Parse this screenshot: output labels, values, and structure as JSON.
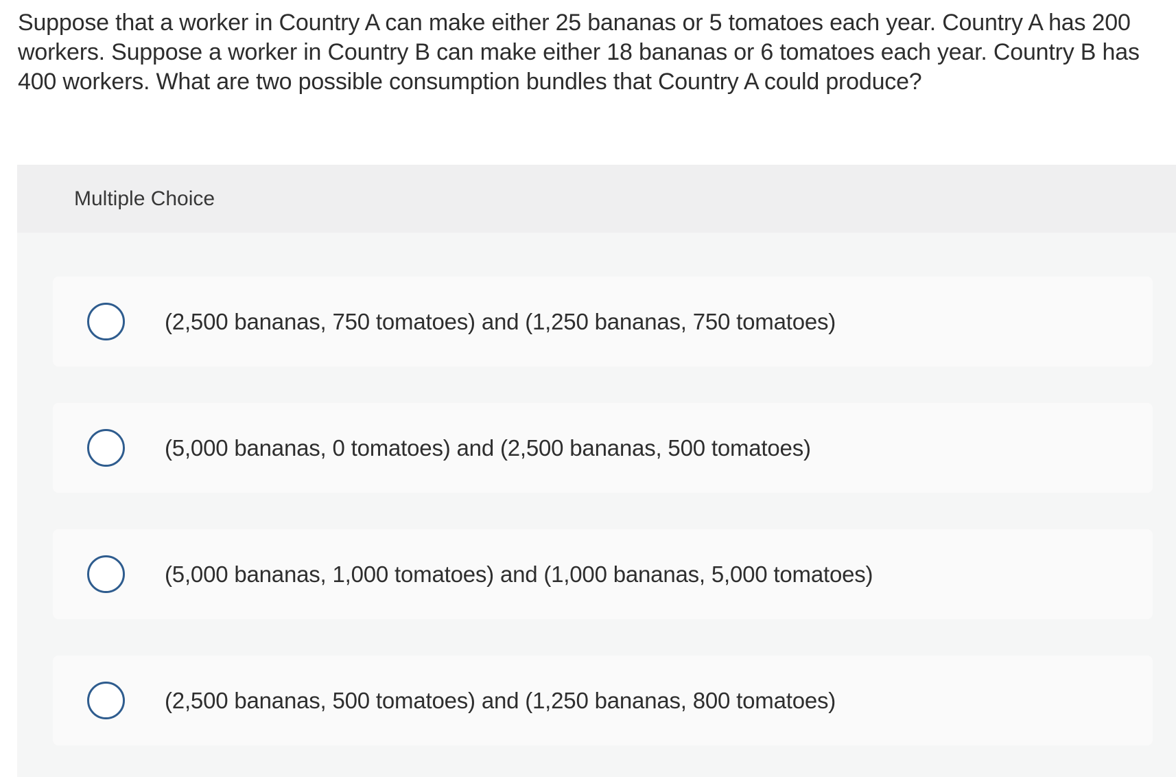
{
  "question": {
    "text": "Suppose that a worker in Country A can make either 25 bananas or 5 tomatoes each year. Country A has 200 workers. Suppose a worker in Country B can make either 18 bananas or 6 tomatoes each year. Country B has 400 workers. What are two possible consumption bundles that Country A could produce?"
  },
  "section": {
    "label": "Multiple Choice"
  },
  "options": [
    {
      "label": "(2,500 bananas, 750 tomatoes) and (1,250 bananas, 750 tomatoes)",
      "selected": false
    },
    {
      "label": "(5,000 bananas, 0 tomatoes) and (2,500 bananas, 500 tomatoes)",
      "selected": false
    },
    {
      "label": "(5,000 bananas, 1,000 tomatoes) and (1,000 bananas, 5,000 tomatoes)",
      "selected": false
    },
    {
      "label": "(2,500 bananas, 500 tomatoes) and (1,250 bananas, 800 tomatoes)",
      "selected": false
    }
  ],
  "colors": {
    "page_bg": "#ffffff",
    "panel_bg": "#f5f6f6",
    "header_bg": "#efeff0",
    "card_bg": "#fafafa",
    "question_text": "#2d2d2d",
    "option_text": "#2e2e2e",
    "header_text": "#373737",
    "radio_border": "#2e5c8e"
  }
}
